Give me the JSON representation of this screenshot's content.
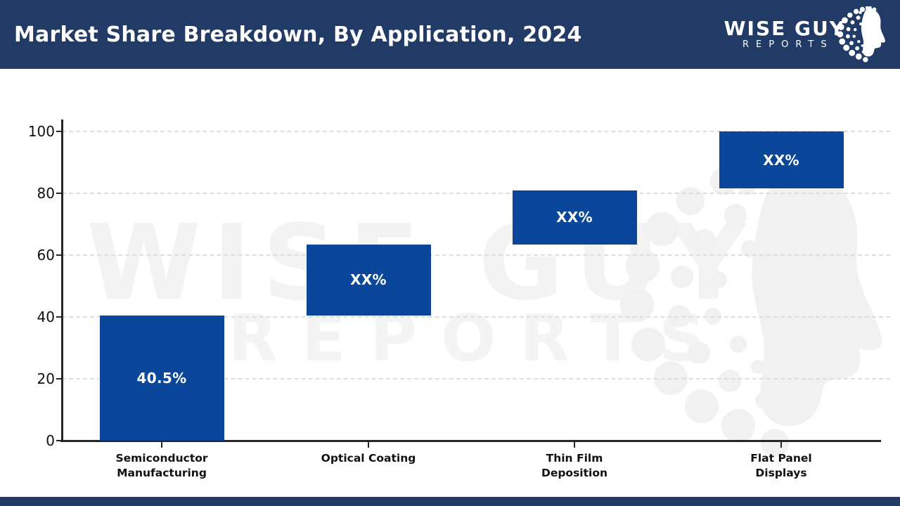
{
  "header": {
    "title": "Market Share Breakdown, By Application, 2024",
    "logo": {
      "line1": "WISE GUY",
      "line2": "REPORTS"
    }
  },
  "watermark": {
    "line1": "WISE GUY",
    "line2": "REPORTS"
  },
  "colors": {
    "header_navy": "#213a66",
    "bar_blue": "#0a4699",
    "gridline": "#dedede",
    "axis": "#262626",
    "watermark_gray": "#f3f3f3"
  },
  "chart_data": {
    "type": "bar",
    "subtype": "waterfall",
    "title": "Market Share Breakdown, By Application, 2024",
    "xlabel": "",
    "ylabel": "",
    "categories": [
      "Semiconductor Manufacturing",
      "Optical Coating",
      "Thin Film Deposition",
      "Flat Panel Displays"
    ],
    "bars": [
      {
        "category_lines": [
          "Semiconductor",
          "Manufacturing"
        ],
        "start": 0,
        "end": 40.5,
        "label": "40.5%"
      },
      {
        "category_lines": [
          "Optical Coating"
        ],
        "start": 40.5,
        "end": 63.5,
        "label": "XX%"
      },
      {
        "category_lines": [
          "Thin Film",
          "Deposition"
        ],
        "start": 63.5,
        "end": 81,
        "label": "XX%"
      },
      {
        "category_lines": [
          "Flat Panel",
          "Displays"
        ],
        "start": 81.5,
        "end": 100,
        "label": "XX%"
      }
    ],
    "values_visible": [
      40.5,
      null,
      null,
      null
    ],
    "yticks": [
      0,
      20,
      40,
      60,
      80,
      100
    ],
    "ylim": [
      0,
      100
    ],
    "grid": "horizontal dashed, on",
    "legend": "none",
    "bar_color": "#0a4699"
  }
}
